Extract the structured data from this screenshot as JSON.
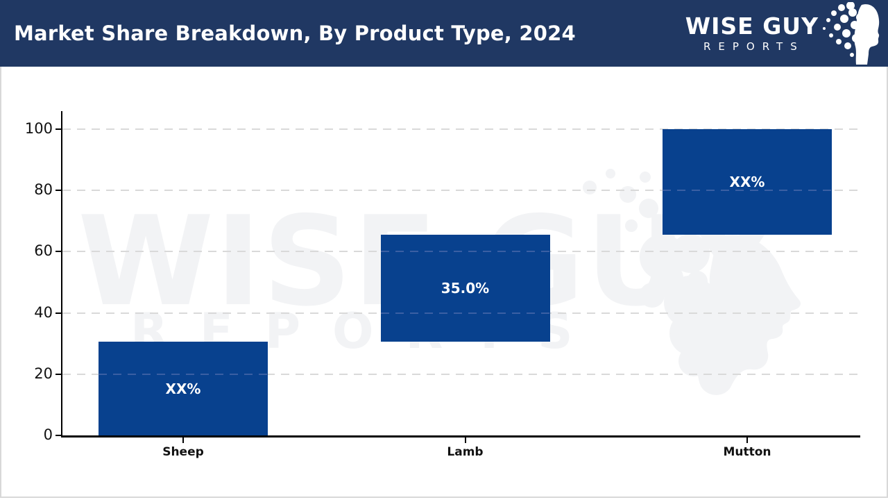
{
  "header": {
    "title": "Market Share Breakdown, By Product Type, 2024",
    "logo": {
      "name": "WISE GUY",
      "tagline": "REPORTS"
    }
  },
  "watermark": {
    "line1": "WISE GUY",
    "line2": "REPORTS"
  },
  "chart_data": {
    "type": "bar",
    "variant": "floating-segment-waterfall",
    "title": "Market Share Breakdown, By Product Type, 2024",
    "categories": [
      "Sheep",
      "Lamb",
      "Mutton"
    ],
    "segments": [
      {
        "category": "Sheep",
        "start": 0,
        "end": 30.5,
        "label": "XX%"
      },
      {
        "category": "Lamb",
        "start": 30.5,
        "end": 65.5,
        "label": "35.0%"
      },
      {
        "category": "Mutton",
        "start": 65.5,
        "end": 100,
        "label": "XX%"
      }
    ],
    "yticks": [
      0,
      20,
      40,
      60,
      80,
      100
    ],
    "ylim": [
      0,
      106
    ],
    "xlabel": "",
    "ylabel": "",
    "grid": {
      "axis": "y",
      "style": "dashed"
    },
    "legend": "none"
  },
  "colors": {
    "header_bg": "#203863",
    "bar_blue": "#08418e",
    "grid_gray": "#d9d9d9",
    "inbar_grid_blue": "#3a5fa3",
    "axis_black": "#000000",
    "bar_label_white": "#ffffff",
    "watermark_gray": "#f2f3f5",
    "frame_gray": "#d8d8d8"
  }
}
